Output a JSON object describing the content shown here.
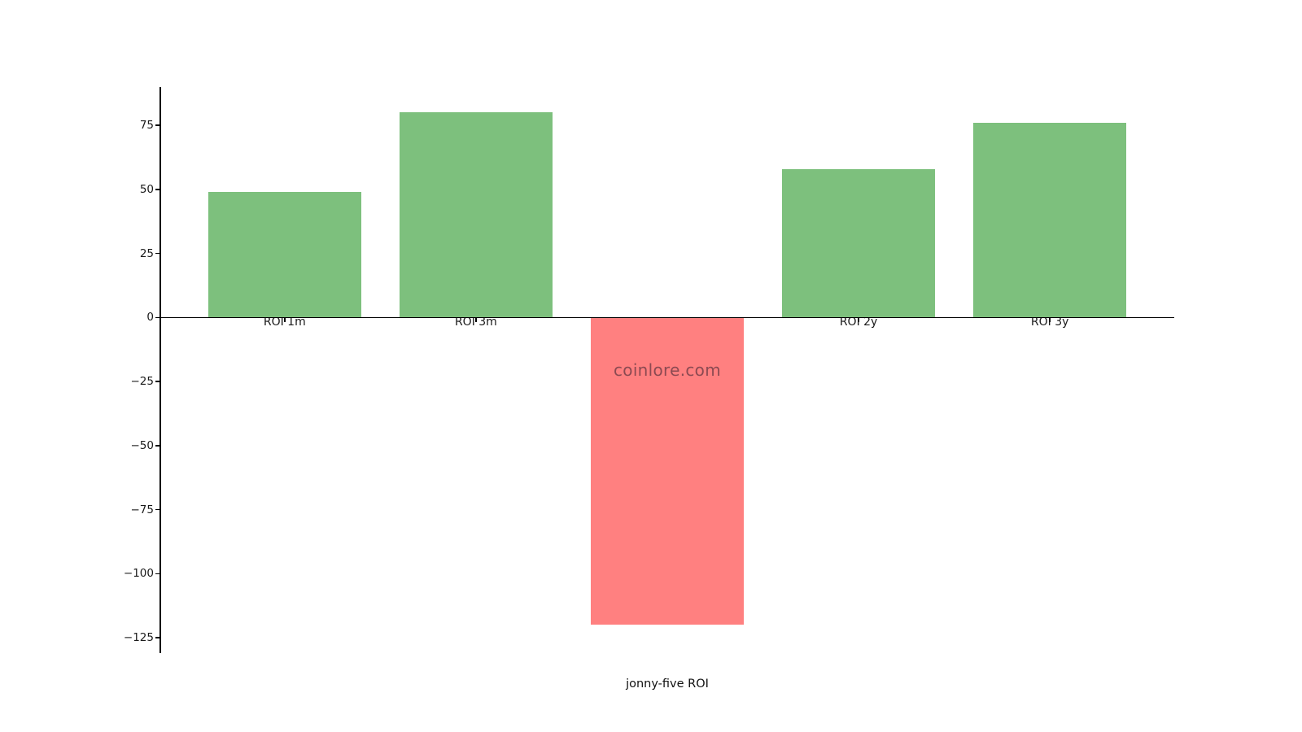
{
  "chart_data": {
    "type": "bar",
    "categories": [
      "ROI 1m",
      "ROI 3m",
      "",
      "ROI 2y",
      "ROI 3y"
    ],
    "values": [
      49,
      80,
      -120,
      58,
      76
    ],
    "bar_colors": [
      "#7dc07d",
      "#7dc07d",
      "#ff8080",
      "#7dc07d",
      "#7dc07d"
    ],
    "positive_color": "#7dc07d",
    "negative_color": "#ff8080",
    "xlabel": "jonny-five ROI",
    "ylabel": "",
    "yticks": [
      75,
      50,
      25,
      0,
      -25,
      -50,
      -75,
      -100,
      -125
    ],
    "ylim": [
      -131,
      90
    ],
    "grid": false,
    "legend": false,
    "background": "#ffffff",
    "axis_color": "#000000",
    "tick_label_color": "#1a1a1a",
    "watermark": {
      "text": "coinlore.com",
      "color": "#8c4a52"
    },
    "notes": "third category tick and label are hidden behind the negative (red) bar"
  }
}
